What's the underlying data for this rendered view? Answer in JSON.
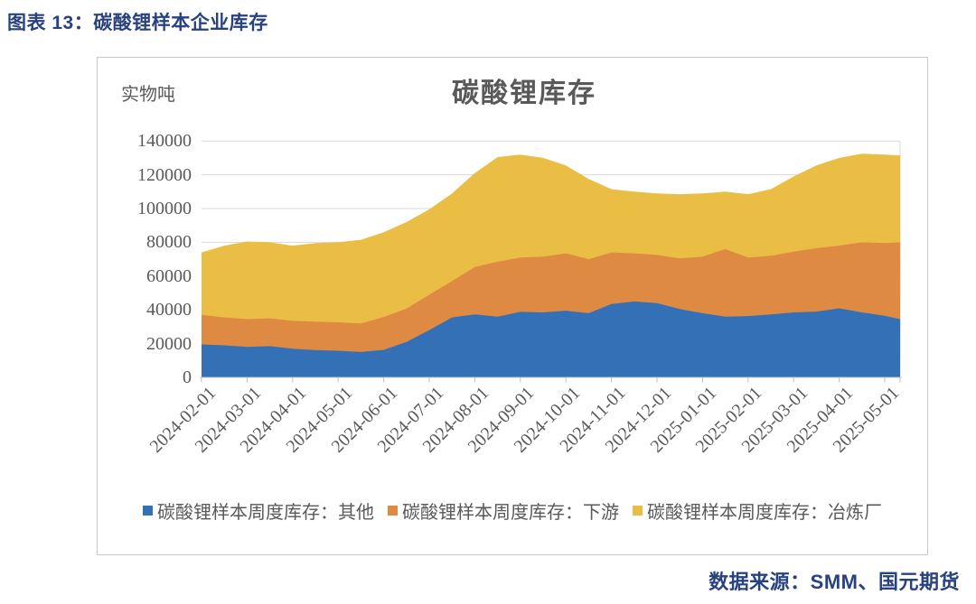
{
  "page": {
    "header": "图表 13：碳酸锂样本企业库存",
    "footer": "数据来源：SMM、国元期货"
  },
  "chart": {
    "title": "碳酸锂库存",
    "unit_label": "实物吨",
    "colors": {
      "series_other": "#3470b6",
      "series_downstream": "#df8a43",
      "series_smelter": "#eabd45",
      "gridline": "#d9d9d9",
      "axis": "#bfbfbf",
      "text": "#595959",
      "accent_navy": "#28417f"
    }
  },
  "chart_data": {
    "type": "area",
    "stacked": true,
    "title": "碳酸锂库存",
    "ylabel": "实物吨",
    "ylim": [
      0,
      140000
    ],
    "y_ticks": [
      0,
      20000,
      40000,
      60000,
      80000,
      100000,
      120000,
      140000
    ],
    "grid": "horizontal",
    "legend_position": "bottom",
    "x_tick_labels": [
      "2024-02-01",
      "2024-03-01",
      "2024-04-01",
      "2024-05-01",
      "2024-06-01",
      "2024-07-01",
      "2024-08-01",
      "2024-09-01",
      "2024-10-01",
      "2024-11-01",
      "2024-12-01",
      "2025-01-01",
      "2025-02-01",
      "2025-03-01",
      "2025-04-01",
      "2025-05-01"
    ],
    "x_months": [
      0,
      0.5,
      1,
      1.5,
      2,
      2.5,
      3,
      3.5,
      4,
      4.5,
      5,
      5.5,
      6,
      6.5,
      7,
      7.5,
      8,
      8.5,
      9,
      9.5,
      10,
      10.5,
      11,
      11.5,
      12,
      12.5,
      13,
      13.5,
      14,
      14.5,
      15,
      15.34
    ],
    "series": [
      {
        "name": "碳酸锂样本周度库存：其他",
        "color": "#3470b6",
        "values": [
          19500,
          19000,
          18000,
          18500,
          17000,
          16200,
          15800,
          15000,
          16300,
          21000,
          28000,
          35500,
          37300,
          36000,
          38800,
          38500,
          39500,
          38000,
          43500,
          45000,
          44000,
          40500,
          38000,
          36000,
          36300,
          37300,
          38500,
          39000,
          40900,
          38500,
          36500,
          34500
        ]
      },
      {
        "name": "碳酸锂样本周度库存：下游",
        "color": "#df8a43",
        "values": [
          17500,
          16500,
          16500,
          16500,
          16500,
          16800,
          16800,
          17000,
          19500,
          19800,
          21000,
          21500,
          28100,
          32500,
          32200,
          33000,
          34000,
          32000,
          30500,
          28500,
          28500,
          30000,
          33500,
          40000,
          34700,
          34700,
          36000,
          37500,
          37100,
          41500,
          43000,
          45500
        ]
      },
      {
        "name": "碳酸锂样本周度库存：冶炼厂",
        "color": "#eabd45",
        "values": [
          37000,
          42500,
          46000,
          45000,
          44500,
          46500,
          47400,
          49500,
          50200,
          51200,
          50500,
          52000,
          55600,
          62000,
          61000,
          58500,
          52000,
          47500,
          37500,
          36500,
          36500,
          38000,
          37500,
          34000,
          37500,
          39500,
          44500,
          49000,
          52000,
          52500,
          52500,
          51500
        ]
      }
    ]
  }
}
